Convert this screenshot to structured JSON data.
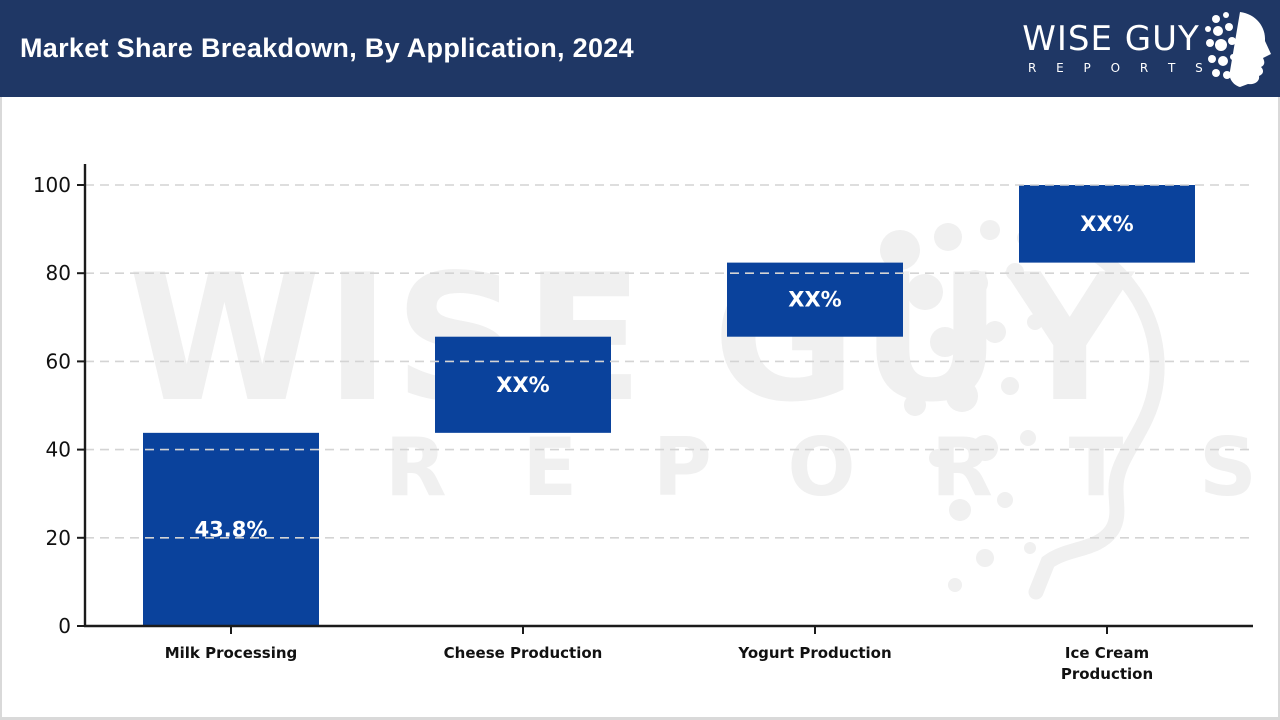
{
  "header": {
    "title": "Market Share Breakdown, By Application, 2024",
    "logo": {
      "line1": "WISE GUY",
      "line2": "R E P O R T S"
    }
  },
  "watermark": {
    "line1": "WISE GUY",
    "line2": "R E P O R T S"
  },
  "colors": {
    "header_bg": "#1F3765",
    "bar": "#0A429C",
    "bar_label": "#FFFFFF",
    "grid": "#D4D4D4",
    "axis": "#1B1B1B",
    "tick_text": "#111111",
    "watermark": "#F0F0F0",
    "frame_border": "#D9D9D9"
  },
  "chart_data": {
    "type": "bar",
    "subtype": "waterfall",
    "title": "Market Share Breakdown, By Application, 2024",
    "categories": [
      "Milk Processing",
      "Cheese Production",
      "Yogurt Production",
      "Ice Cream Production"
    ],
    "category_tick_lines": [
      [
        "Milk Processing"
      ],
      [
        "Cheese Production"
      ],
      [
        "Yogurt Production"
      ],
      [
        "Ice Cream",
        "Production"
      ]
    ],
    "series": [
      {
        "name": "Market Share (%)",
        "segments": [
          {
            "category": "Milk Processing",
            "start": 0,
            "end": 43.8,
            "label": "43.8%"
          },
          {
            "category": "Cheese Production",
            "start": 43.8,
            "end": 65.6,
            "label": "XX%"
          },
          {
            "category": "Yogurt Production",
            "start": 65.6,
            "end": 82.4,
            "label": "XX%"
          },
          {
            "category": "Ice Cream Production",
            "start": 82.4,
            "end": 100,
            "label": "XX%"
          }
        ]
      }
    ],
    "ylim": [
      0,
      100
    ],
    "yticks": [
      0,
      20,
      40,
      60,
      80,
      100
    ],
    "xlabel": "",
    "ylabel": "",
    "grid": "horizontal-dashed",
    "legend": "none"
  }
}
